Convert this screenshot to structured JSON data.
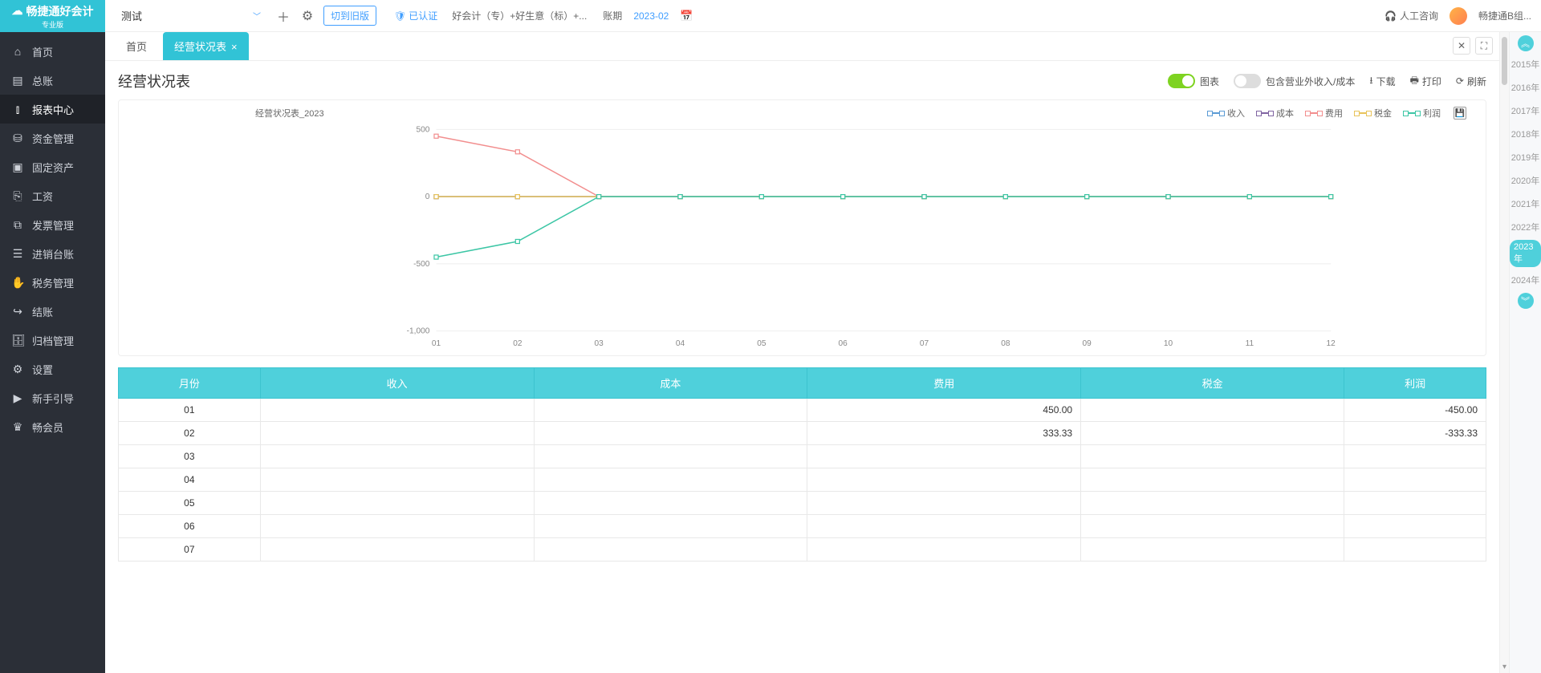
{
  "brand": {
    "name": "畅捷通好会计",
    "edition": "专业版"
  },
  "header": {
    "company": "测试",
    "switch_old": "切到旧版",
    "certified": "已认证",
    "plan": "好会计（专）+好生意（标）+...",
    "period_label": "账期",
    "period_value": "2023-02",
    "support": "人工咨询",
    "user": "畅捷通B组..."
  },
  "sidebar": [
    {
      "icon": "⌂",
      "label": "首页"
    },
    {
      "icon": "▤",
      "label": "总账"
    },
    {
      "icon": "⫾",
      "label": "报表中心",
      "active": true
    },
    {
      "icon": "⛁",
      "label": "资金管理"
    },
    {
      "icon": "▣",
      "label": "固定资产"
    },
    {
      "icon": "⎘",
      "label": "工资"
    },
    {
      "icon": "⧉",
      "label": "发票管理"
    },
    {
      "icon": "☰",
      "label": "进销台账"
    },
    {
      "icon": "✋",
      "label": "税务管理"
    },
    {
      "icon": "↪",
      "label": "结账"
    },
    {
      "icon": "🗄",
      "label": "归档管理"
    },
    {
      "icon": "⚙",
      "label": "设置"
    },
    {
      "icon": "▶",
      "label": "新手引导"
    },
    {
      "icon": "♛",
      "label": "畅会员"
    }
  ],
  "tabs": {
    "home": "首页",
    "current": "经营状况表"
  },
  "page": {
    "title": "经营状况表",
    "toggles": {
      "chart": "图表",
      "extra": "包含营业外收入/成本"
    },
    "actions": {
      "download": "下载",
      "print": "打印",
      "refresh": "刷新"
    }
  },
  "chart": {
    "title": "经营状况表_2023",
    "type": "line",
    "x_labels": [
      "01",
      "02",
      "03",
      "04",
      "05",
      "06",
      "07",
      "08",
      "09",
      "10",
      "11",
      "12"
    ],
    "y_ticks": [
      500,
      0,
      -500,
      -1000
    ],
    "ylim": [
      -1000,
      500
    ],
    "series": [
      {
        "name": "收入",
        "color": "#5b9bd5",
        "values": [
          0,
          0,
          0,
          0,
          0,
          0,
          0,
          0,
          0,
          0,
          0,
          0
        ]
      },
      {
        "name": "成本",
        "color": "#8064a2",
        "values": [
          0,
          0,
          0,
          0,
          0,
          0,
          0,
          0,
          0,
          0,
          0,
          0
        ]
      },
      {
        "name": "费用",
        "color": "#f28e8e",
        "values": [
          450,
          333.33,
          0,
          0,
          0,
          0,
          0,
          0,
          0,
          0,
          0,
          0
        ]
      },
      {
        "name": "税金",
        "color": "#e8c35a",
        "values": [
          0,
          0,
          0,
          0,
          0,
          0,
          0,
          0,
          0,
          0,
          0,
          0
        ]
      },
      {
        "name": "利润",
        "color": "#3cc6a5",
        "values": [
          -450,
          -333.33,
          0,
          0,
          0,
          0,
          0,
          0,
          0,
          0,
          0,
          0
        ]
      }
    ],
    "grid_color": "#eeeeee",
    "marker": "square",
    "marker_size": 5
  },
  "table": {
    "columns": [
      "月份",
      "收入",
      "成本",
      "费用",
      "税金",
      "利润"
    ],
    "col_align": [
      "center",
      "right",
      "right",
      "right",
      "right",
      "right"
    ],
    "col_widths": [
      "140px",
      "270px",
      "270px",
      "270px",
      "260px",
      "140px"
    ],
    "rows": [
      [
        "01",
        "",
        "",
        "450.00",
        "",
        "-450.00"
      ],
      [
        "02",
        "",
        "",
        "333.33",
        "",
        "-333.33"
      ],
      [
        "03",
        "",
        "",
        "",
        "",
        ""
      ],
      [
        "04",
        "",
        "",
        "",
        "",
        ""
      ],
      [
        "05",
        "",
        "",
        "",
        "",
        ""
      ],
      [
        "06",
        "",
        "",
        "",
        "",
        ""
      ],
      [
        "07",
        "",
        "",
        "",
        "",
        ""
      ]
    ]
  },
  "year_rail": {
    "years": [
      "2015年",
      "2016年",
      "2017年",
      "2018年",
      "2019年",
      "2020年",
      "2021年",
      "2022年",
      "2023年",
      "2024年"
    ],
    "active": "2023年"
  }
}
